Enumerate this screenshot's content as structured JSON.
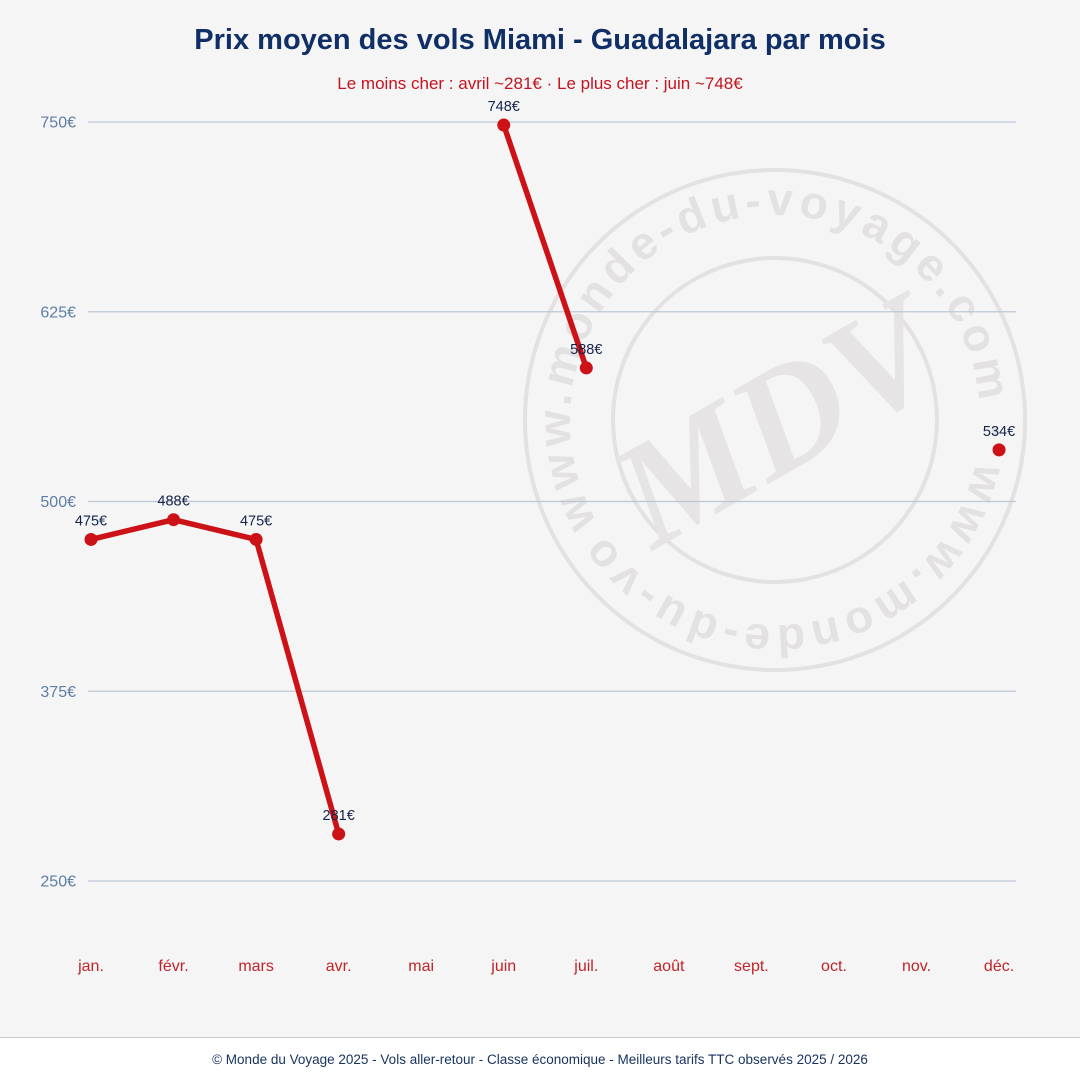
{
  "title": "Prix moyen des vols Miami - Guadalajara par mois",
  "subtitle": "Le moins cher : avril ~281€ · Le plus cher : juin ~748€",
  "footer": "© Monde du Voyage 2025 - Vols aller-retour - Classe économique - Meilleurs tarifs TTC observés 2025 / 2026",
  "watermark": {
    "text": "www.monde-du-voyage.com",
    "center": "MDV"
  },
  "colors": {
    "line": "#cc1117",
    "title": "#0f2f66",
    "subtitle": "#c41420",
    "axis": "#5e7ea5",
    "month": "#c0242b",
    "grid": "#bcc7d6",
    "point_label": "#14244a"
  },
  "chart_data": {
    "type": "line",
    "title": "Prix moyen des vols Miami - Guadalajara par mois",
    "categories": [
      "jan.",
      "févr.",
      "mars",
      "avr.",
      "mai",
      "juin",
      "juil.",
      "août",
      "sept.",
      "oct.",
      "nov.",
      "déc."
    ],
    "values": [
      475,
      488,
      475,
      281,
      null,
      748,
      588,
      null,
      null,
      null,
      null,
      534
    ],
    "unit": "€",
    "ytick_labels": [
      "750€",
      "625€",
      "500€",
      "375€",
      "250€"
    ],
    "ytick_values": [
      750,
      625,
      500,
      375,
      250
    ],
    "ylim": [
      250,
      750
    ],
    "xlabel": "",
    "ylabel": "",
    "grid": true,
    "legend": "none",
    "min_note": {
      "month": "avril",
      "value": 281
    },
    "max_note": {
      "month": "juin",
      "value": 748
    }
  }
}
